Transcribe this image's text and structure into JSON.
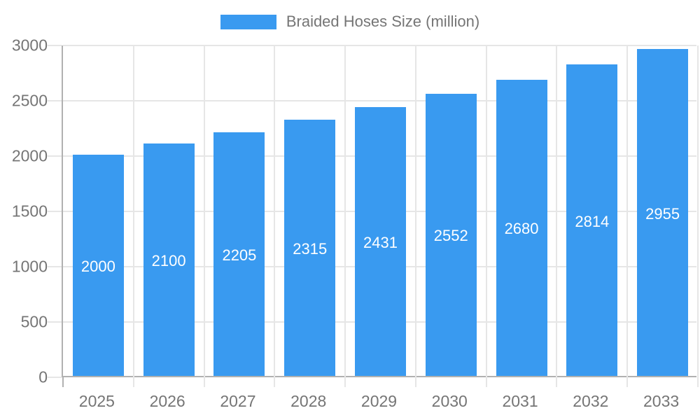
{
  "legend": {
    "label": "Braided Hoses Size (million)"
  },
  "colors": {
    "bar": "#399af0",
    "axis_text": "#757575",
    "bar_label_text": "#ffffff",
    "gridline": "#e6e6e6",
    "axis_line": "#b1b1b1",
    "background": "#ffffff"
  },
  "chart_data": {
    "type": "bar",
    "title": "",
    "series_name": "Braided Hoses Size (million)",
    "categories": [
      "2025",
      "2026",
      "2027",
      "2028",
      "2029",
      "2030",
      "2031",
      "2032",
      "2033"
    ],
    "values": [
      2000,
      2100,
      2205,
      2315,
      2431,
      2552,
      2680,
      2814,
      2955
    ],
    "xlabel": "",
    "ylabel": "",
    "ylim": [
      0,
      3000
    ],
    "yticks": [
      0,
      500,
      1000,
      1500,
      2000,
      2500,
      3000
    ],
    "grid": true,
    "legend_position": "top",
    "value_labels": "inside-bar-center-white"
  }
}
